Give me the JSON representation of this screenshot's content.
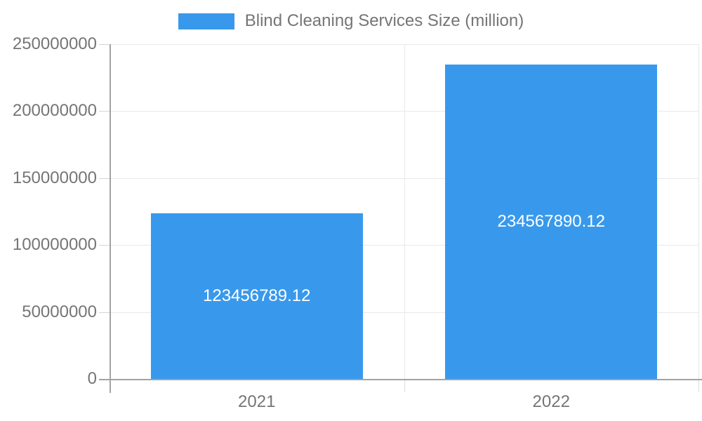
{
  "legend": {
    "label": "Blind Cleaning Services Size (million)"
  },
  "colors": {
    "bar": "#3899EC",
    "grid": "#e9e9e9",
    "axis": "#a3a3a3",
    "text": "#757575",
    "bar_label": "#ffffff",
    "background": "#ffffff"
  },
  "chart_data": {
    "type": "bar",
    "title": "Blind Cleaning Services Size (million)",
    "categories": [
      "2021",
      "2022"
    ],
    "values": [
      123456789.12,
      234567890.12
    ],
    "value_labels": [
      "123456789.12",
      "234567890.12"
    ],
    "xlabel": "",
    "ylabel": "",
    "ylim": [
      0,
      250000000
    ],
    "yticks": [
      0,
      50000000,
      100000000,
      150000000,
      200000000,
      250000000
    ],
    "ytick_labels": [
      "0",
      "50000000",
      "100000000",
      "150000000",
      "200000000",
      "250000000"
    ],
    "grid": true,
    "legend_position": "top",
    "bar_label_position": "center"
  }
}
